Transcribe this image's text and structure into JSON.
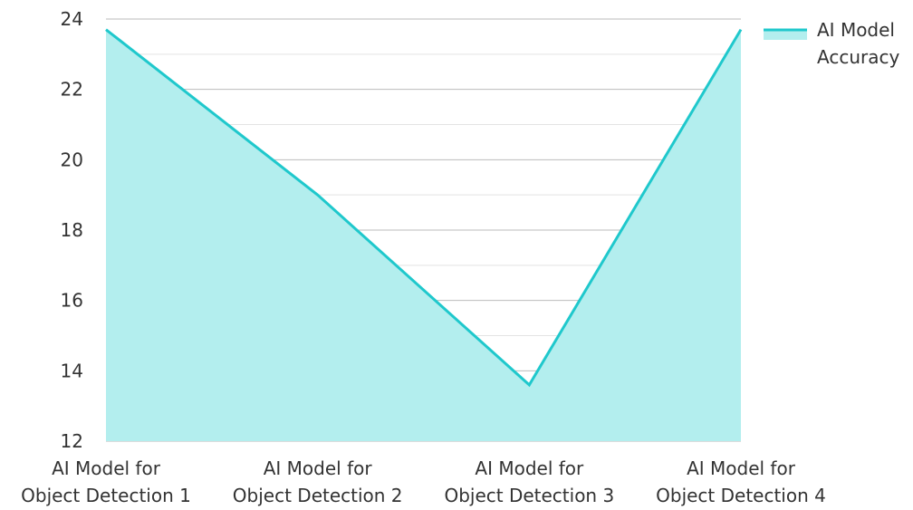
{
  "chart_data": {
    "type": "area",
    "categories": [
      "AI Model for Object Detection 1",
      "AI Model for Object Detection 2",
      "AI Model for Object Detection 3",
      "AI Model for Object Detection 4"
    ],
    "category_lines": [
      [
        "AI Model for",
        "Object Detection 1"
      ],
      [
        "AI Model for",
        "Object Detection 2"
      ],
      [
        "AI Model for",
        "Object Detection 3"
      ],
      [
        "AI Model for",
        "Object Detection 4"
      ]
    ],
    "series": [
      {
        "name": "AI Model Accuracy",
        "name_lines": [
          "AI Model",
          "Accuracy"
        ],
        "values": [
          23.7,
          19.0,
          13.6,
          23.7
        ]
      }
    ],
    "ylim": [
      12,
      24
    ],
    "yticks": [
      12,
      14,
      16,
      18,
      20,
      22,
      24
    ],
    "minor_gridlines": true,
    "grid": true,
    "legend_position": "top-right",
    "colors": {
      "line": "#1FC8CC",
      "fill": "#B3EEEE",
      "major_grid": "#BBBBBB",
      "minor_grid": "#E3E3E3",
      "axis": "#BBBBBB",
      "text": "#333333"
    }
  }
}
